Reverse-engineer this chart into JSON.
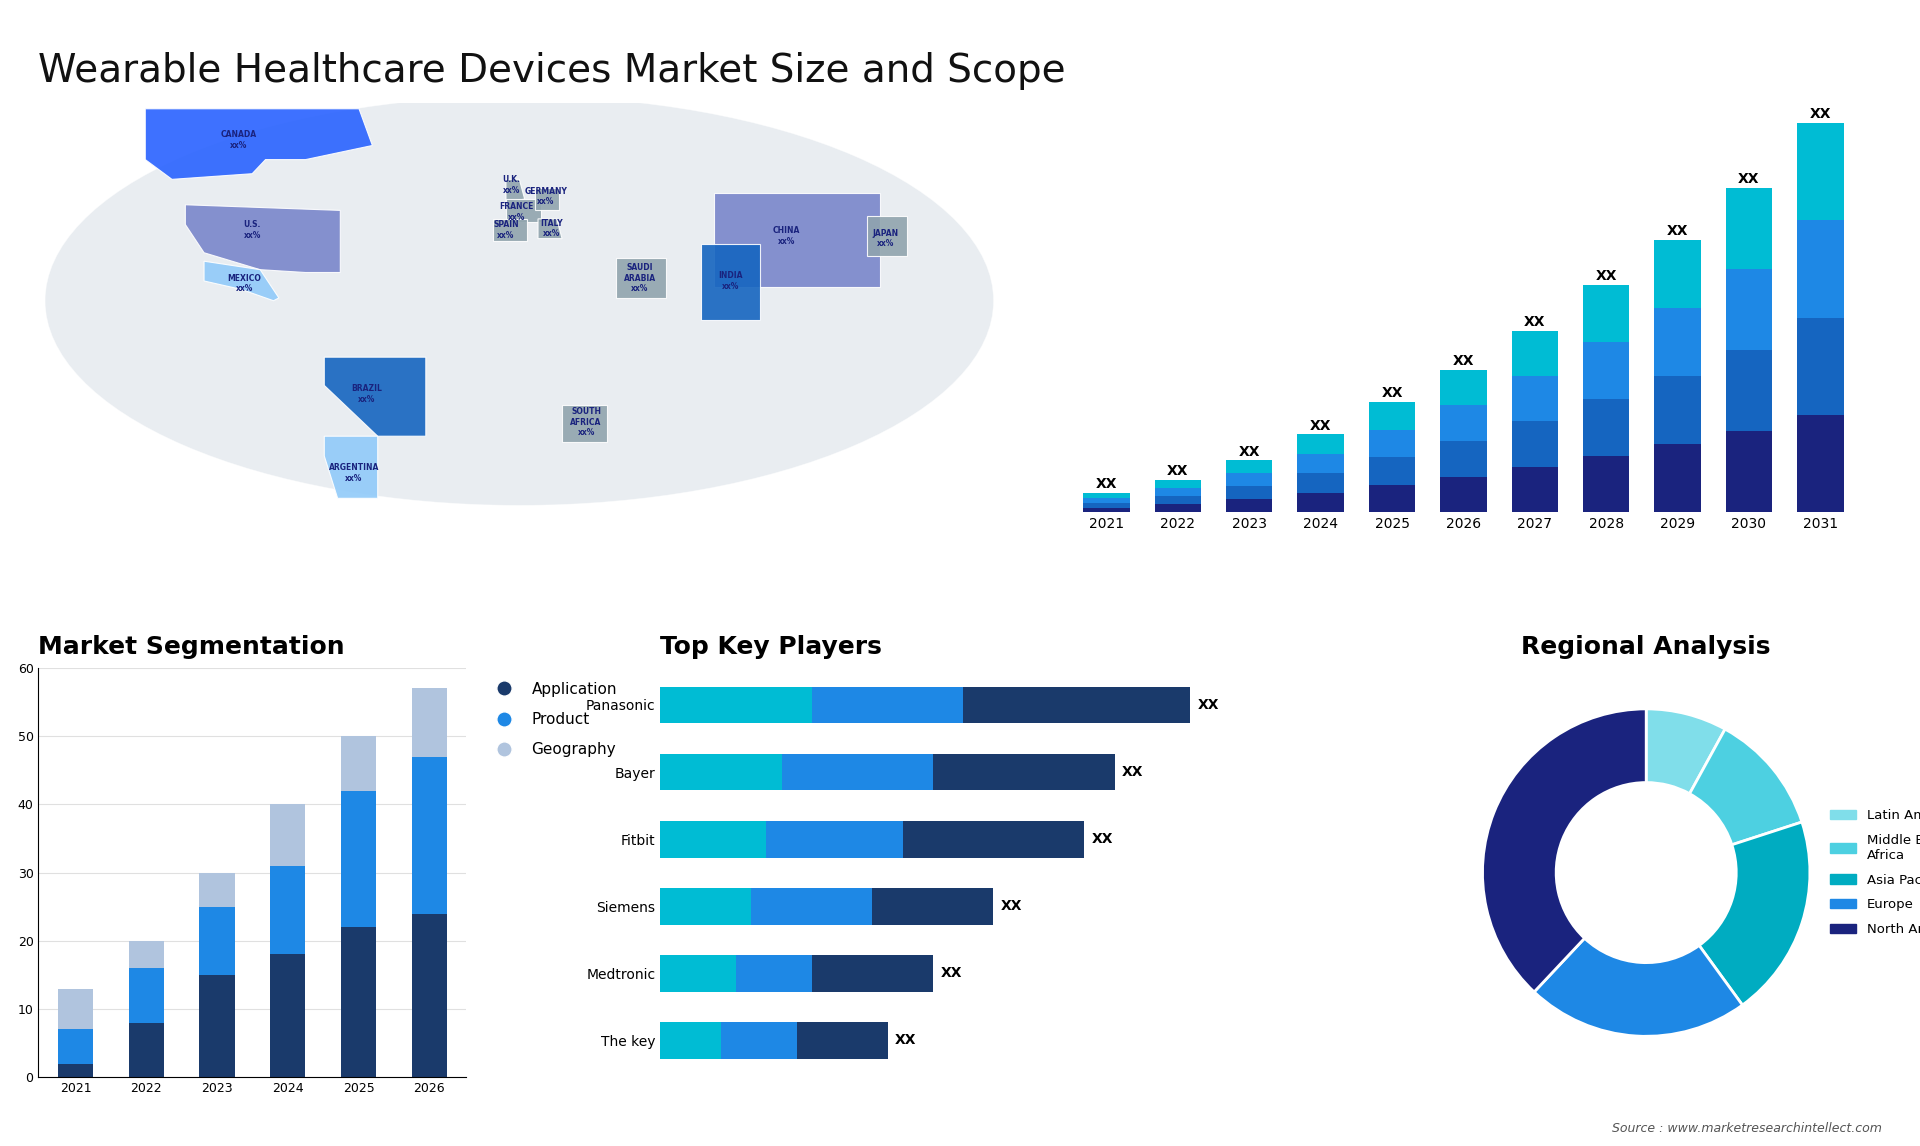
{
  "title": "Wearable Healthcare Devices Market Size and Scope",
  "title_fontsize": 28,
  "background_color": "#ffffff",
  "stacked_bar": {
    "years": [
      2021,
      2022,
      2023,
      2024,
      2025,
      2026,
      2027,
      2028,
      2029,
      2030,
      2031
    ],
    "layer1": [
      1.5,
      2.5,
      4,
      6,
      8.5,
      11,
      14,
      17.5,
      21,
      25,
      30
    ],
    "layer2": [
      1.5,
      2.5,
      4,
      6,
      8.5,
      11,
      14,
      17.5,
      21,
      25,
      30
    ],
    "layer3": [
      1.5,
      2.5,
      4,
      6,
      8.5,
      11,
      14,
      17.5,
      21,
      25,
      30
    ],
    "layer4": [
      1.5,
      2.5,
      4,
      6,
      8.5,
      11,
      14,
      17.5,
      21,
      25,
      30
    ],
    "colors": [
      "#1a237e",
      "#1565c0",
      "#1e88e5",
      "#00bcd4"
    ],
    "label": "XX",
    "arrow_color": "#1a3a6b"
  },
  "seg_bar": {
    "years": [
      "2021",
      "2022",
      "2023",
      "2024",
      "2025",
      "2026"
    ],
    "application": [
      2,
      8,
      15,
      18,
      22,
      24
    ],
    "product": [
      5,
      8,
      10,
      13,
      20,
      23
    ],
    "geography": [
      6,
      4,
      5,
      9,
      8,
      10
    ],
    "colors": [
      "#1a3a6b",
      "#1e88e5",
      "#b0c4de"
    ],
    "ylim": [
      0,
      60
    ],
    "yticks": [
      0,
      10,
      20,
      30,
      40,
      50,
      60
    ]
  },
  "key_players": {
    "names": [
      "Panasonic",
      "Bayer",
      "Fitbit",
      "Siemens",
      "Medtronic",
      "The key"
    ],
    "bar1": [
      35,
      30,
      28,
      22,
      18,
      15
    ],
    "bar2": [
      20,
      18,
      16,
      14,
      10,
      9
    ],
    "bar3": [
      10,
      8,
      7,
      6,
      5,
      4
    ],
    "colors": [
      "#1a3a6b",
      "#1e88e5",
      "#00bcd4"
    ],
    "label": "XX"
  },
  "donut": {
    "labels": [
      "Latin America",
      "Middle East &\nAfrica",
      "Asia Pacific",
      "Europe",
      "North America"
    ],
    "sizes": [
      8,
      12,
      20,
      22,
      38
    ],
    "colors": [
      "#80deea",
      "#4dd0e1",
      "#00acc1",
      "#1e88e5",
      "#1a237e"
    ],
    "hole_size": 0.45
  },
  "source_text": "Source : www.marketresearchintellect.com",
  "seg_title": "Market Segmentation",
  "players_title": "Top Key Players",
  "regional_title": "Regional Analysis",
  "seg_legend": [
    "Application",
    "Product",
    "Geography"
  ],
  "regional_legend": [
    "Latin America",
    "Middle East &\nAfrica",
    "Asia Pacific",
    "Europe",
    "North America"
  ]
}
